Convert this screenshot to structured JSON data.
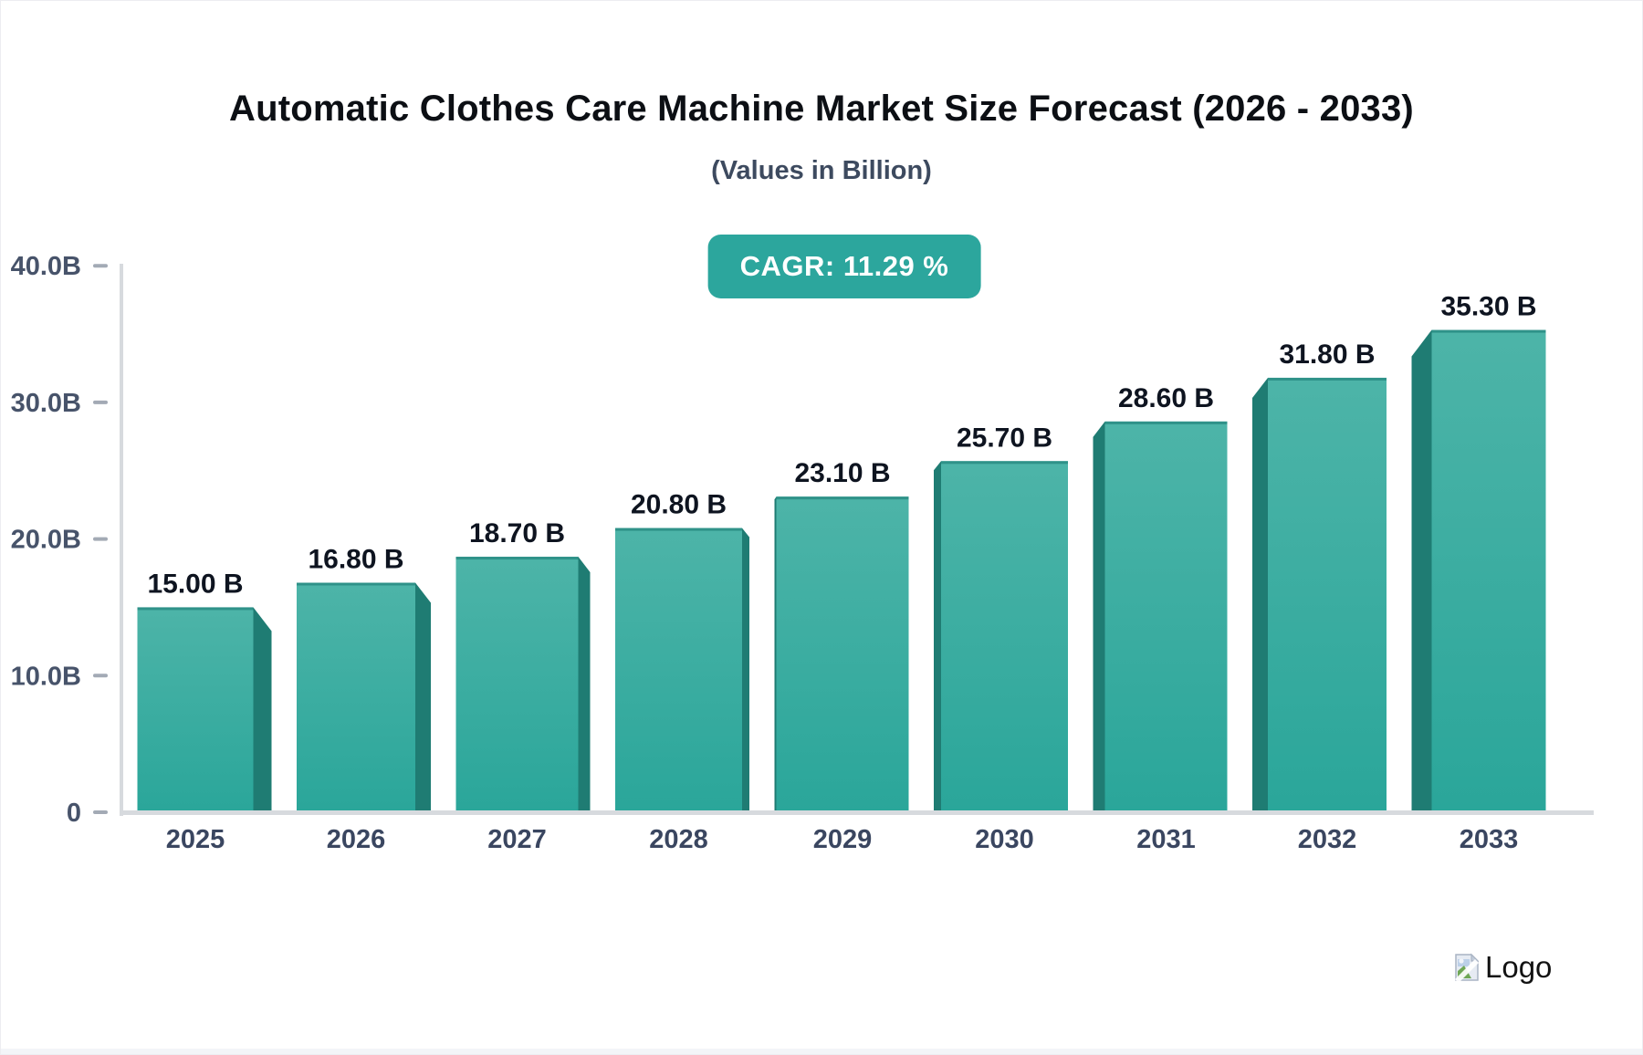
{
  "title": "Automatic Clothes Care Machine Market Size Forecast (2026 - 2033)",
  "subtitle": "(Values in Billion)",
  "badge": {
    "label": "CAGR: 11.29 %"
  },
  "logo": {
    "alt_text": "Logo"
  },
  "colors": {
    "badge_bg": "#2ca69d",
    "bar_face_top": "#4db4a8",
    "bar_face_bottom": "#2aa69a",
    "bar_top_edge": "#2f9289",
    "bar_side": "#1f7c73",
    "axis_line": "#d7dade",
    "tick_dash": "#a3aab5",
    "tick_label": "#47536a",
    "year_label": "#3a4660",
    "value_label": "#0e1420",
    "title_color": "#0c0f14",
    "subtitle_color": "#3d4a5f"
  },
  "chart_data": {
    "type": "bar",
    "title": "Automatic Clothes Care Machine Market Size Forecast (2026 - 2033)",
    "subtitle": "(Values in Billion)",
    "annotation": "CAGR: 11.29 %",
    "categories": [
      "2025",
      "2026",
      "2027",
      "2028",
      "2029",
      "2030",
      "2031",
      "2032",
      "2033"
    ],
    "values": [
      15.0,
      16.8,
      18.7,
      20.8,
      23.1,
      25.7,
      28.6,
      31.8,
      35.3
    ],
    "value_labels": [
      "15.00 B",
      "16.80 B",
      "18.70 B",
      "20.80 B",
      "23.10 B",
      "25.70 B",
      "28.60 B",
      "31.80 B",
      "35.30 B"
    ],
    "xlabel": "",
    "ylabel": "",
    "ylim": [
      0,
      40
    ],
    "yticks": [
      {
        "value": 0,
        "label": "0"
      },
      {
        "value": 10,
        "label": "10.0B"
      },
      {
        "value": 20,
        "label": "20.0B"
      },
      {
        "value": 30,
        "label": "30.0B"
      },
      {
        "value": 40,
        "label": "40.0B"
      }
    ],
    "grid": false,
    "legend": false,
    "bar_style": "3d-perspective"
  }
}
